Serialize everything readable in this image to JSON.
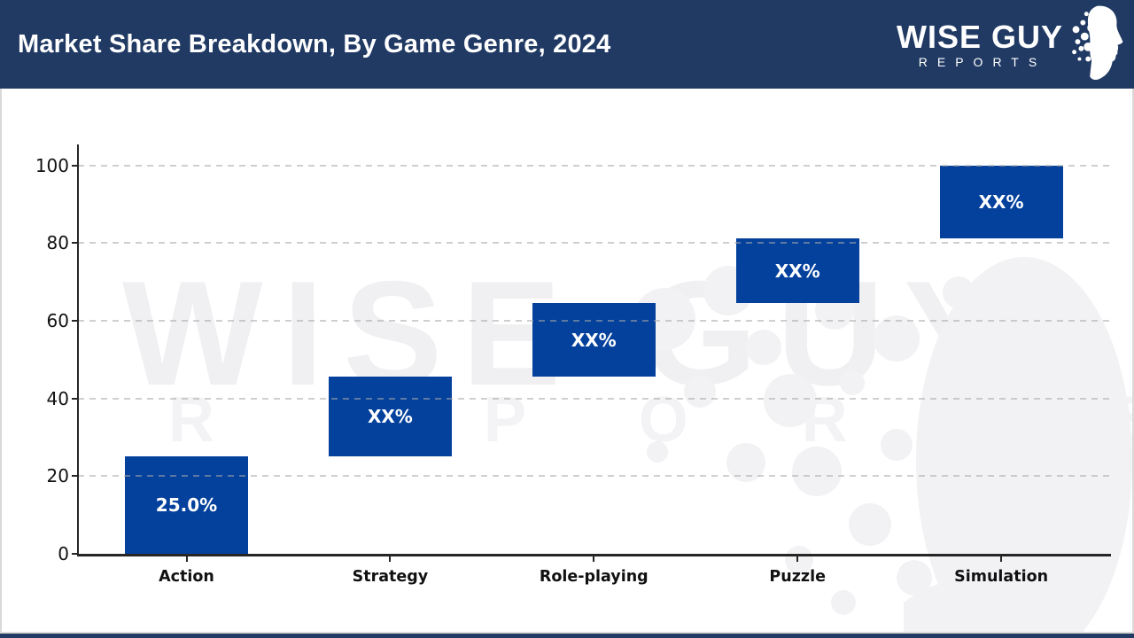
{
  "header": {
    "title": "Market Share Breakdown, By Game Genre, 2024",
    "bg_color": "#213a64",
    "logo_line1": "WISE GUY",
    "logo_line2": "REPORTS"
  },
  "watermark": {
    "line1": "WISE GUY",
    "line2": "R E P O R T S"
  },
  "chart_data": {
    "type": "bar",
    "subtype": "waterfall (floating segment bars stacking to 100%)",
    "title": "Market Share Breakdown, By Game Genre, 2024",
    "categories": [
      "Action",
      "Strategy",
      "Role-playing",
      "Puzzle",
      "Simulation"
    ],
    "segments": [
      {
        "category": "Action",
        "start": 0,
        "end": 25.0,
        "label": "25.0%"
      },
      {
        "category": "Strategy",
        "start": 25.0,
        "end": 45.6,
        "label": "XX%"
      },
      {
        "category": "Role-playing",
        "start": 45.6,
        "end": 64.5,
        "label": "XX%"
      },
      {
        "category": "Puzzle",
        "start": 64.5,
        "end": 81.2,
        "label": "XX%"
      },
      {
        "category": "Simulation",
        "start": 81.2,
        "end": 100.0,
        "label": "XX%"
      }
    ],
    "y_ticks": [
      0,
      20,
      40,
      60,
      80,
      100
    ],
    "ylim": [
      0,
      105
    ],
    "xlabel": "",
    "ylabel": "",
    "bar_color": "#04419c",
    "bar_label_color": "#ffffff",
    "grid": "horizontal dashed gray lines drawn over bars",
    "legend": "none"
  }
}
